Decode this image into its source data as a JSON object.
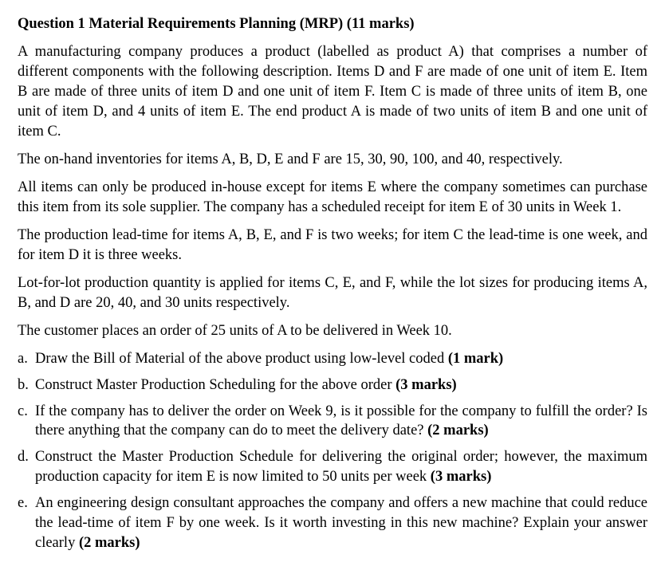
{
  "title": "Question 1 Material Requirements Planning (MRP) (11 marks)",
  "paragraphs": {
    "p1": "A manufacturing company produces a product (labelled as product A) that comprises a number of different components with the following description. Items D and F are made of one unit of item E. Item B are made of three units of item D and one unit of item F. Item C is made of three units of item B, one unit of item D, and 4 units of item E. The end product A is made of two units of item B and one unit of item C.",
    "p2": "The on-hand inventories for items A, B, D, E and F are 15, 30, 90, 100, and 40, respectively.",
    "p3": "All items can only be produced in-house except for items E where the company sometimes can purchase this item from its sole supplier. The company has a scheduled receipt for item E of 30 units in Week 1.",
    "p4": "The production lead-time for items A, B, E, and F is two weeks; for item C the lead-time is one week, and for item D it is three weeks.",
    "p5": "Lot-for-lot production quantity is applied for items C, E, and F, while the lot sizes for producing items A, B, and D are 20, 40, and 30 units respectively.",
    "p6": "The customer places an order of 25 units of A to be delivered in Week 10."
  },
  "items": {
    "a": {
      "marker": "a.",
      "text": "Draw the Bill of Material of the above product using low-level coded ",
      "marks": "(1 mark)"
    },
    "b": {
      "marker": "b.",
      "text": "Construct Master Production Scheduling for the above order ",
      "marks": "(3 marks)"
    },
    "c": {
      "marker": "c.",
      "text": "If the company has to deliver the order on Week 9, is it possible for the company to fulfill the order? Is there anything that the company can do to meet the delivery date? ",
      "marks": "(2 marks)"
    },
    "d": {
      "marker": "d.",
      "text": "Construct the Master Production Schedule for delivering the original order; however, the maximum production capacity for item E is now limited to 50 units per week ",
      "marks": "(3 marks)"
    },
    "e": {
      "marker": "e.",
      "text": "An engineering design consultant approaches the company and offers a new machine that could reduce the lead-time of item F by one week. Is it worth investing in this new machine? Explain your answer clearly ",
      "marks": "(2 marks)"
    }
  }
}
